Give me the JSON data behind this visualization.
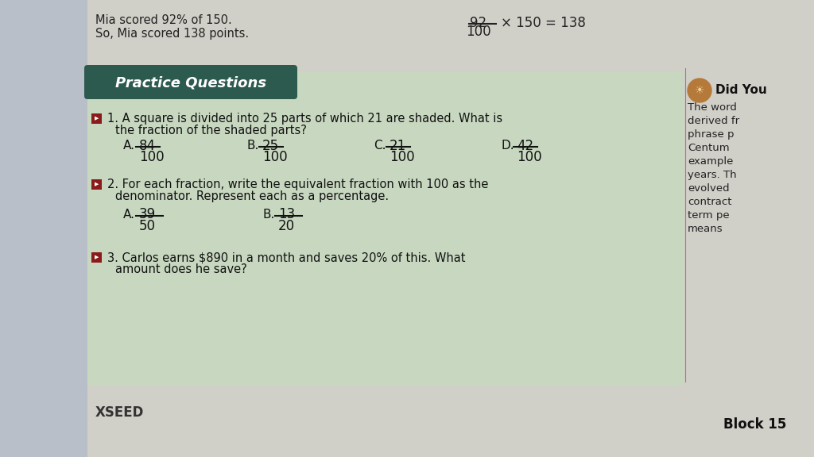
{
  "bg_color": "#c8d8c0",
  "top_bg": "#d0cfc8",
  "dark_header_color": "#2d5a4e",
  "title_text": "Practice Questions",
  "q1_text1": "1. A square is divided into 25 parts of which 21 are shaded. What is",
  "q1_text2": "the fraction of the shaded parts?",
  "q1_options": [
    {
      "label": "A.",
      "num": "84",
      "den": "100"
    },
    {
      "label": "B.",
      "num": "25",
      "den": "100"
    },
    {
      "label": "C.",
      "num": "21",
      "den": "100"
    },
    {
      "label": "D.",
      "num": "42",
      "den": "100"
    }
  ],
  "q2_text1": "2. For each fraction, write the equivalent fraction with 100 as the",
  "q2_text2": "denominator. Represent each as a percentage.",
  "q2_options": [
    {
      "label": "A.",
      "num": "39",
      "den": "50"
    },
    {
      "label": "B.",
      "num": "13",
      "den": "20"
    }
  ],
  "q3_text1": "3. Carlos earns $890 in a month and saves 20% of this. What",
  "q3_text2": "amount does he save?",
  "top_left_text1": "Mia scored 92% of 150.",
  "top_left_text2": "So, Mia scored 138 points.",
  "did_you_title": "Did You",
  "did_you_lines": [
    "The word",
    "derived fr",
    "phrase p",
    "Centum",
    "example",
    "years. Th",
    "evolved",
    "contract",
    "term pe",
    "means"
  ],
  "xseed_text": "XSEED",
  "block_text": "Block 15",
  "icon2_color": "#b5793a",
  "sidebar_bg": "#f0ece4",
  "sidebar_line": "#888888"
}
